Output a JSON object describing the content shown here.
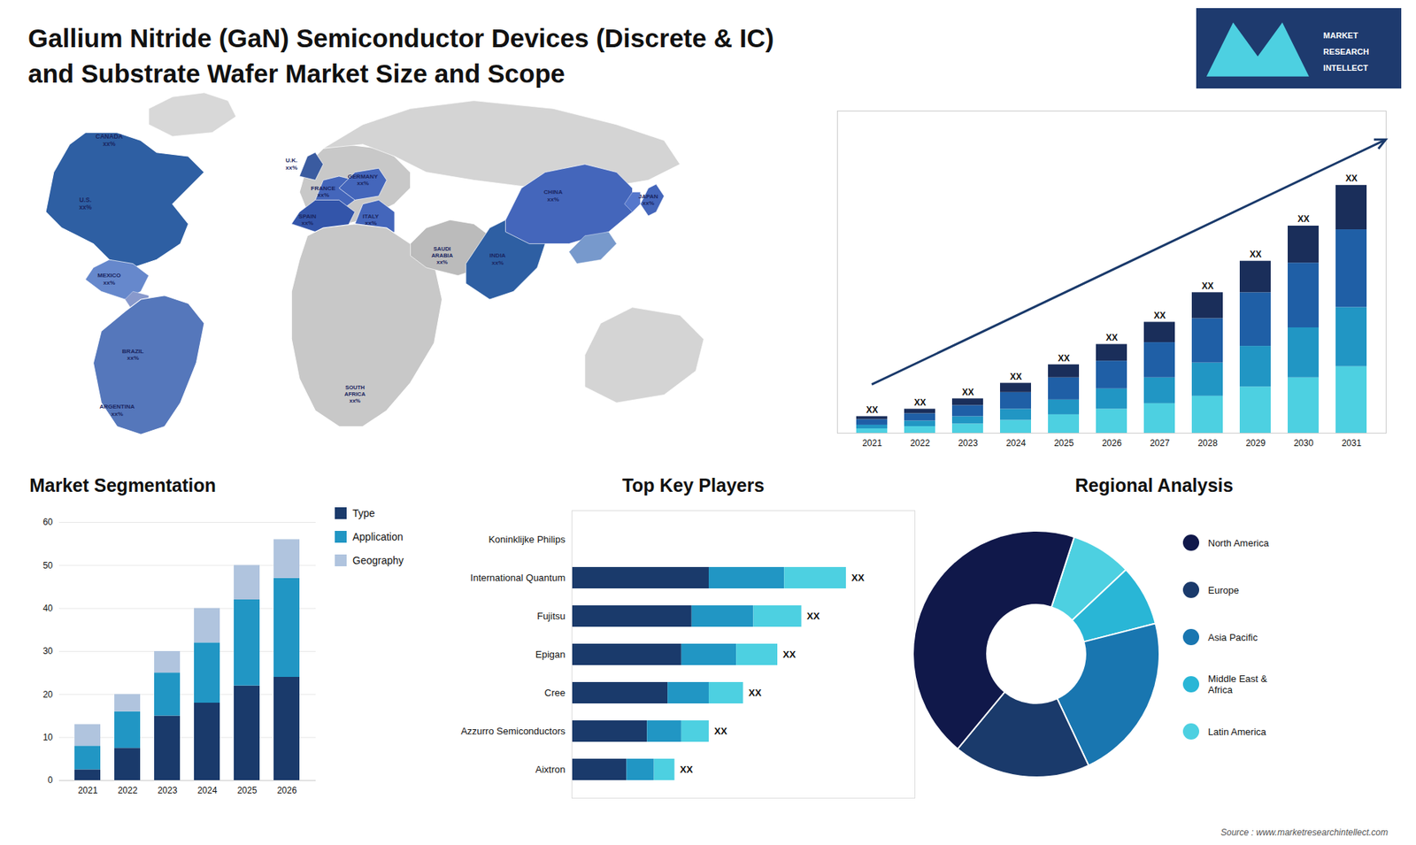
{
  "title": "Gallium Nitride (GaN) Semiconductor Devices (Discrete & IC)\nand Substrate Wafer Market Size and Scope",
  "annotations": [
    "MARKET",
    "RESEARCH",
    "INTELLECT",
    "Source : www.marketresearchintellect.com"
  ],
  "chart_data": [
    {
      "type": "map",
      "annotations": [
        "CANADA\nxx%",
        "U.S.\nxx%",
        "MEXICO\nxx%",
        "BRAZIL\nxx%",
        "ARGENTINA\nxx%",
        "U.K.\nxx%",
        "FRANCE\nxx%",
        "SPAIN\nxx%",
        "GERMANY\nxx%",
        "ITALY\nxx%",
        "SAUDI\nARABIA\nxx%",
        "SOUTH\nAFRICA\nxx%",
        "CHINA\nxx%",
        "JAPAN\nxx%",
        "INDIA\nxx%"
      ]
    },
    {
      "type": "bar",
      "stacked": true,
      "categories": [
        "2021",
        "2022",
        "2023",
        "2024",
        "2025",
        "2026",
        "2027",
        "2028",
        "2029",
        "2030",
        "2031"
      ],
      "series": [
        {
          "color": "#4dd0e1",
          "values": [
            1.2,
            1.8,
            2.5,
            3.5,
            5.0,
            6.5,
            8.0,
            10.0,
            12.5,
            15.0,
            18.0
          ]
        },
        {
          "color": "#2196c4",
          "values": [
            1.0,
            1.5,
            2.0,
            3.0,
            4.0,
            5.5,
            7.0,
            9.0,
            11.0,
            13.5,
            16.0
          ]
        },
        {
          "color": "#1f5fa6",
          "values": [
            1.5,
            2.0,
            3.0,
            4.5,
            6.0,
            7.5,
            9.5,
            12.0,
            14.5,
            17.5,
            21.0
          ]
        },
        {
          "color": "#1a2e5a",
          "values": [
            0.8,
            1.2,
            1.8,
            2.5,
            3.5,
            4.5,
            5.5,
            7.0,
            8.5,
            10.0,
            12.0
          ]
        }
      ],
      "ylim": [
        0,
        87.1
      ],
      "tick_labels": "x",
      "annotations": [
        "XX",
        "XX",
        "XX",
        "XX",
        "XX",
        "XX",
        "XX",
        "XX",
        "XX",
        "XX",
        "XX"
      ]
    },
    {
      "type": "bar",
      "title": "Market Segmentation",
      "stacked": true,
      "categories": [
        "2021",
        "2022",
        "2023",
        "2024",
        "2025",
        "2026"
      ],
      "series": [
        {
          "name": "Type",
          "color": "#1a3a6b",
          "values": [
            2.5,
            7.5,
            15,
            18,
            22,
            24
          ]
        },
        {
          "name": "Application",
          "color": "#2196c4",
          "values": [
            5.5,
            8.5,
            10,
            14,
            20,
            23
          ]
        },
        {
          "name": "Geography",
          "color": "#b0c4de",
          "values": [
            5,
            4,
            5,
            8,
            8,
            9
          ]
        }
      ],
      "ylim": [
        0,
        60
      ],
      "yticks": [
        0,
        10,
        20,
        30,
        40,
        50,
        60
      ],
      "grid": true,
      "legend": "right"
    },
    {
      "type": "bar",
      "title": "Top Key Players",
      "orientation": "horizontal",
      "stacked": true,
      "categories": [
        "Koninklijke Philips",
        "International Quantum",
        "Fujitsu",
        "Epigan",
        "Cree",
        "Azzurro Semiconductors",
        "Aixtron"
      ],
      "series": [
        {
          "color": "#1a3a6b",
          "values": [
            0,
            40,
            35,
            32,
            28,
            22,
            16
          ]
        },
        {
          "color": "#2196c4",
          "values": [
            0,
            22,
            18,
            16,
            12,
            10,
            8
          ]
        },
        {
          "color": "#4dd0e1",
          "values": [
            0,
            18,
            14,
            12,
            10,
            8,
            6
          ]
        }
      ],
      "xlim": [
        0,
        100
      ],
      "tick_labels": "y",
      "annotations": [
        null,
        "XX",
        "XX",
        "XX",
        "XX",
        "XX",
        "XX"
      ]
    },
    {
      "type": "pie",
      "title": "Regional Analysis",
      "categories": [
        "Latin America",
        "Middle East &\nAfrica",
        "Asia Pacific",
        "Europe",
        "North America"
      ],
      "values": [
        8,
        8,
        22,
        18,
        44
      ],
      "colors": [
        "#4dd0e1",
        "#29b6d6",
        "#1976b0",
        "#1a3a6b",
        "#10184a"
      ],
      "legend": "right"
    }
  ]
}
